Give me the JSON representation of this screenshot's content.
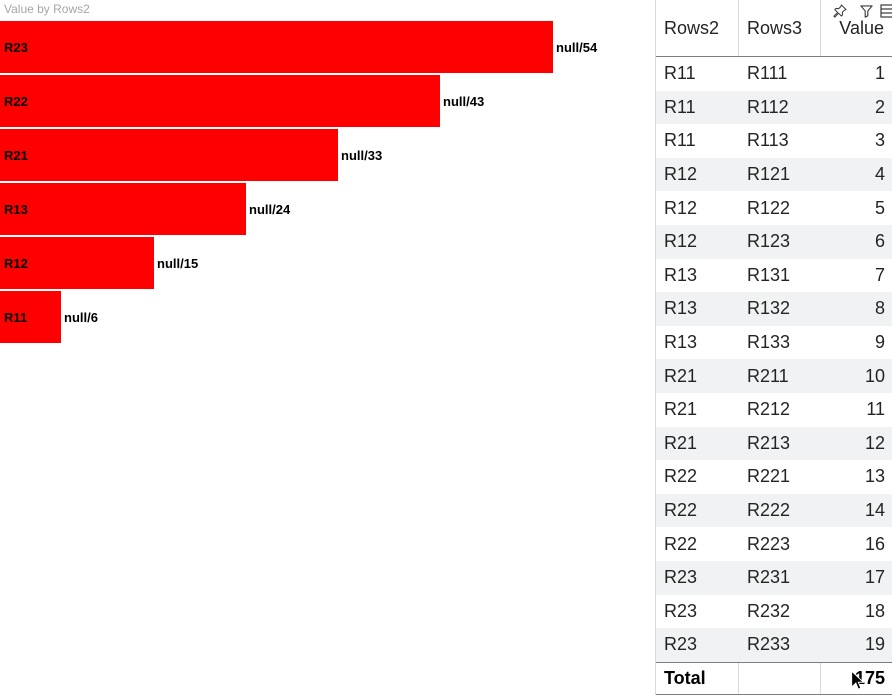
{
  "chart": {
    "title": "Value by Rows2"
  },
  "chart_data": {
    "type": "bar",
    "orientation": "horizontal",
    "title": "Value by Rows2",
    "categories": [
      "R23",
      "R22",
      "R21",
      "R13",
      "R12",
      "R11"
    ],
    "values": [
      54,
      43,
      33,
      24,
      15,
      6
    ],
    "data_labels": [
      "null/54",
      "null/43",
      "null/33",
      "null/24",
      "null/15",
      "null/6"
    ],
    "xlim": [
      0,
      54
    ],
    "legend": "none",
    "grid": false
  },
  "table": {
    "columns": [
      "Rows2",
      "Rows3",
      "Value"
    ],
    "rows": [
      [
        "R11",
        "R111",
        "1"
      ],
      [
        "R11",
        "R112",
        "2"
      ],
      [
        "R11",
        "R113",
        "3"
      ],
      [
        "R12",
        "R121",
        "4"
      ],
      [
        "R12",
        "R122",
        "5"
      ],
      [
        "R12",
        "R123",
        "6"
      ],
      [
        "R13",
        "R131",
        "7"
      ],
      [
        "R13",
        "R132",
        "8"
      ],
      [
        "R13",
        "R133",
        "9"
      ],
      [
        "R21",
        "R211",
        "10"
      ],
      [
        "R21",
        "R212",
        "11"
      ],
      [
        "R21",
        "R213",
        "12"
      ],
      [
        "R22",
        "R221",
        "13"
      ],
      [
        "R22",
        "R222",
        "14"
      ],
      [
        "R22",
        "R223",
        "16"
      ],
      [
        "R23",
        "R231",
        "17"
      ],
      [
        "R23",
        "R232",
        "18"
      ],
      [
        "R23",
        "R233",
        "19"
      ]
    ],
    "total_label": "Total",
    "total_value": "175"
  },
  "visual_header_icons": [
    "pin-icon",
    "filter-icon",
    "more-options-icon"
  ],
  "colors": {
    "bar": "#ff0000",
    "alt_row": "#f0f2f3",
    "divider": "#d9d9d9",
    "header_border": "#7f7f7f",
    "title_text": "#a6a6a6",
    "body_text": "#252423",
    "icon": "#3b3a39"
  }
}
